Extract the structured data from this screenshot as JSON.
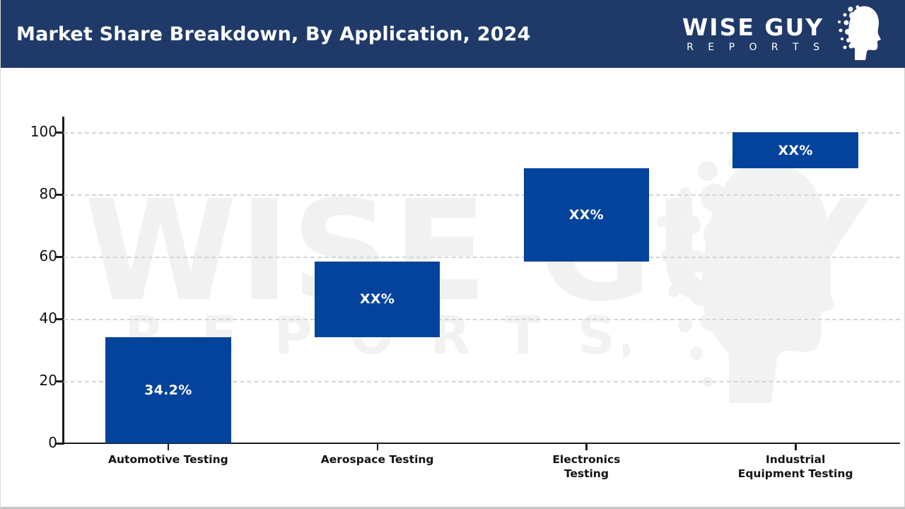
{
  "header": {
    "title": "Market Share Breakdown, By Application, 2024",
    "background_color": "#1f3a68",
    "logo": {
      "line1": "WISE GUY",
      "line2": "R E P O R T S"
    }
  },
  "watermark": {
    "line1": "WISE GUY",
    "line2": "REPORTS"
  },
  "chart_data": {
    "type": "bar",
    "subtype": "waterfall",
    "title": "Market Share Breakdown, By Application, 2024",
    "xlabel": "",
    "ylabel": "",
    "ylim": [
      0,
      100
    ],
    "y_ticks": [
      0,
      20,
      40,
      60,
      80,
      100
    ],
    "grid": "horizontal-dashed",
    "bar_color": "#04439b",
    "categories": [
      [
        "Automotive Testing"
      ],
      [
        "Aerospace Testing"
      ],
      [
        "Electronics",
        "Testing"
      ],
      [
        "Industrial",
        "Equipment Testing"
      ]
    ],
    "segments": [
      {
        "category": "Automotive Testing",
        "start": 0,
        "end": 34.2,
        "label": "34.2%"
      },
      {
        "category": "Aerospace Testing",
        "start": 34.2,
        "end": 58.5,
        "label": "XX%"
      },
      {
        "category": "Electronics Testing",
        "start": 58.5,
        "end": 88.3,
        "label": "XX%"
      },
      {
        "category": "Industrial Equipment Testing",
        "start": 88.3,
        "end": 100,
        "label": "XX%"
      }
    ]
  }
}
